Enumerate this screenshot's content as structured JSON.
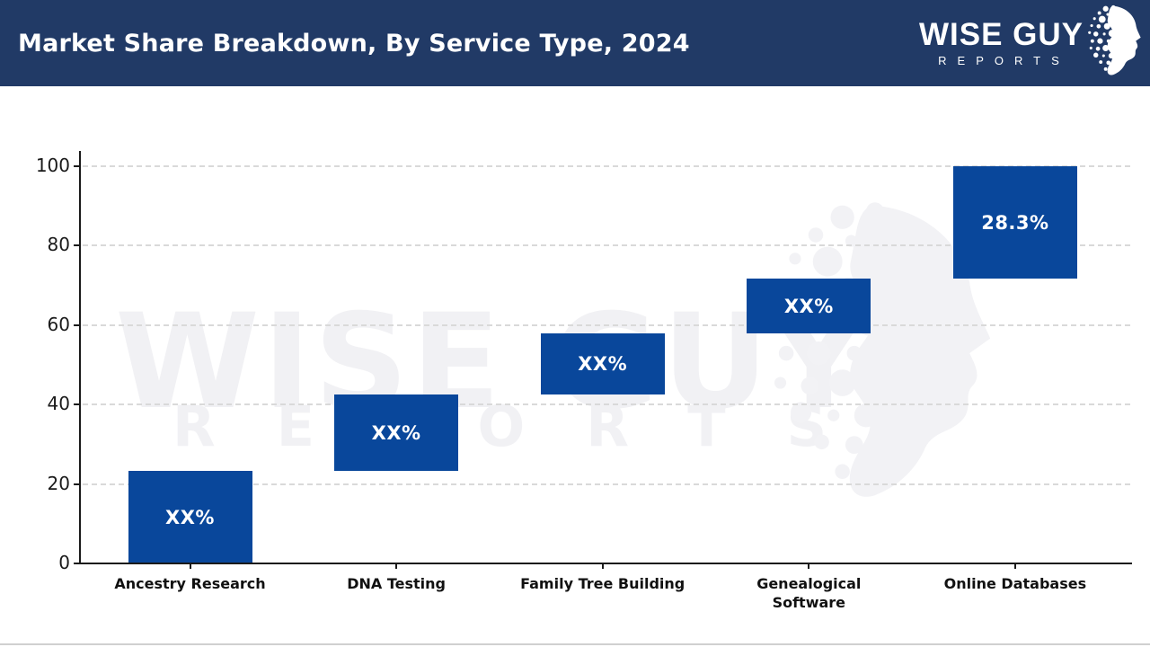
{
  "header": {
    "title": "Market Share Breakdown, By Service Type, 2024",
    "logo": {
      "line1": "WISE GUY",
      "line2": "REPORTS"
    }
  },
  "watermark": {
    "line1": "WISE GUY",
    "line2": "REPORTS"
  },
  "colors": {
    "header_bg": "#213A66",
    "bar": "#09479B",
    "bar_label": "#FFFFFF",
    "axis": "#1A1A1A",
    "grid": "#D9D9D9",
    "watermark": "#F1F1F4"
  },
  "chart_data": {
    "type": "bar",
    "subtype": "waterfall",
    "title": "Market Share Breakdown, By Service Type, 2024",
    "categories": [
      "Ancestry Research",
      "DNA Testing",
      "Family Tree Building",
      "Genealogical Software",
      "Online Databases"
    ],
    "segments": [
      {
        "category": "Ancestry Research",
        "start": 0,
        "end": 23.2,
        "value_label": "XX%"
      },
      {
        "category": "DNA Testing",
        "start": 23.2,
        "end": 42.6,
        "value_label": "XX%"
      },
      {
        "category": "Family Tree Building",
        "start": 42.6,
        "end": 57.9,
        "value_label": "XX%"
      },
      {
        "category": "Genealogical Software",
        "start": 57.9,
        "end": 71.7,
        "value_label": "XX%"
      },
      {
        "category": "Online Databases",
        "start": 71.7,
        "end": 100,
        "value_label": "28.3%"
      }
    ],
    "xlabel": "",
    "ylabel": "",
    "ylim": [
      0,
      100
    ],
    "yticks": [
      0,
      20,
      40,
      60,
      80,
      100
    ],
    "grid": true,
    "grid_style": "dashed",
    "legend": false
  }
}
